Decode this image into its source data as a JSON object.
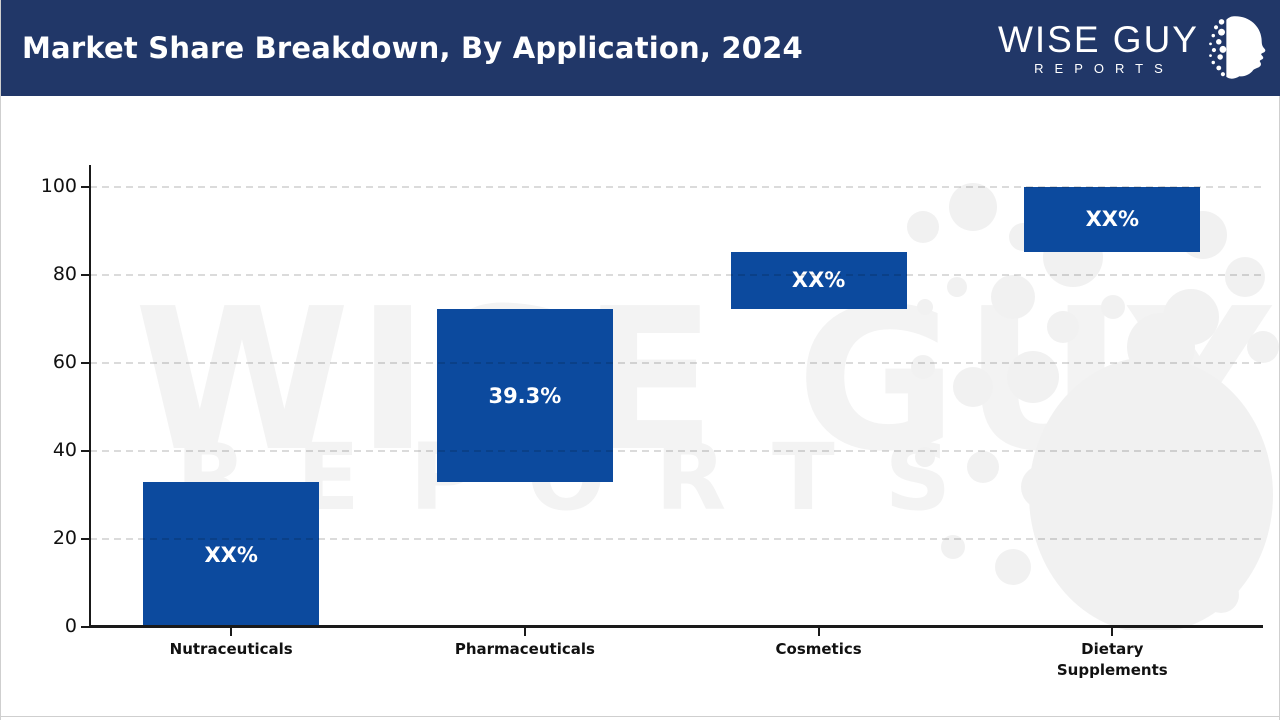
{
  "header": {
    "title": "Market Share Breakdown, By Application, 2024"
  },
  "logo": {
    "name": "WISE GUY",
    "subtitle": "REPORTS"
  },
  "watermark": {
    "line1": "WISE GUY",
    "line2": "REPORTS"
  },
  "colors": {
    "header_bg": "#213768",
    "bar_blue": "#0c4a9e",
    "axis": "#1a1a1a",
    "gridline": "rgba(0,0,0,0.14)",
    "watermark": "#f3f3f3"
  },
  "chart_data": {
    "type": "bar",
    "variant": "floating-waterfall",
    "title": "Market Share Breakdown, By Application, 2024",
    "categories": [
      "Nutraceuticals",
      "Pharmaceuticals",
      "Cosmetics",
      "Dietary Supplements"
    ],
    "x_labels": [
      "Nutraceuticals",
      "Pharmaceuticals",
      "Cosmetics",
      "Dietary\nSupplements"
    ],
    "segments": [
      {
        "category": "Nutraceuticals",
        "start": 0,
        "end": 32.9,
        "label": "XX%"
      },
      {
        "category": "Pharmaceuticals",
        "start": 32.9,
        "end": 72.2,
        "label": "39.3%"
      },
      {
        "category": "Cosmetics",
        "start": 72.2,
        "end": 85.3,
        "label": "XX%"
      },
      {
        "category": "Dietary Supplements",
        "start": 85.3,
        "end": 100,
        "label": "XX%"
      }
    ],
    "values": [
      32.9,
      39.3,
      13.1,
      14.7
    ],
    "ylim": [
      0,
      100
    ],
    "yticks": [
      0,
      20,
      40,
      60,
      80,
      100
    ],
    "xlabel": "",
    "ylabel": "",
    "legend": "none",
    "grid": "horizontal dashed",
    "bar_color": "#0c4a9e"
  }
}
